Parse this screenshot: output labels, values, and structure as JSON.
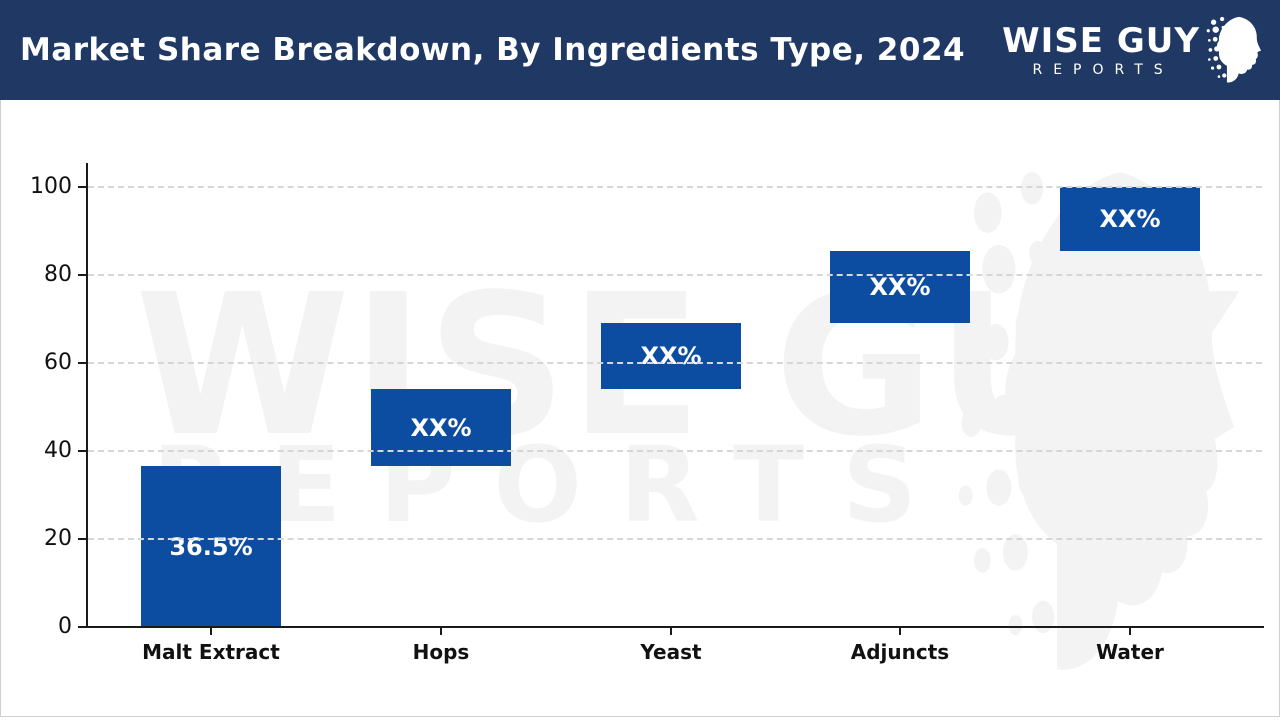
{
  "header": {
    "title": "Market Share Breakdown, By Ingredients Type, 2024",
    "logo": {
      "name": "WISE GUY",
      "sub": "REPORTS"
    }
  },
  "watermark": {
    "name": "WISE GUY",
    "sub": "REPORTS"
  },
  "chart_data": {
    "type": "bar",
    "variant": "waterfall",
    "title": "Market Share Breakdown, By Ingredients Type, 2024",
    "xlabel": "",
    "ylabel": "",
    "categories": [
      "Malt Extract",
      "Hops",
      "Yeast",
      "Adjuncts",
      "Water"
    ],
    "segments": [
      {
        "category": "Malt Extract",
        "start": 0,
        "end": 36.5,
        "label": "36.5%"
      },
      {
        "category": "Hops",
        "start": 36.5,
        "end": 54,
        "label": "XX%"
      },
      {
        "category": "Yeast",
        "start": 54,
        "end": 69,
        "label": "XX%"
      },
      {
        "category": "Adjuncts",
        "start": 69,
        "end": 85.5,
        "label": "XX%"
      },
      {
        "category": "Water",
        "start": 85.5,
        "end": 100,
        "label": "XX%"
      }
    ],
    "yticks": [
      0,
      20,
      40,
      60,
      80,
      100
    ],
    "ylim": [
      0,
      105.5
    ],
    "grid": {
      "horizontal": true,
      "style": "dashed",
      "drawn_above_bars": true
    },
    "legend": "none",
    "colors": {
      "bar": "#0c4da2",
      "bar_label": "#ffffff",
      "axis": "#1a1a1a",
      "tick_label": "#111111",
      "gridline": "#d6d6d6",
      "header_bg": "#1f3864",
      "header_text": "#ffffff",
      "watermark": "#f3f3f3"
    }
  }
}
